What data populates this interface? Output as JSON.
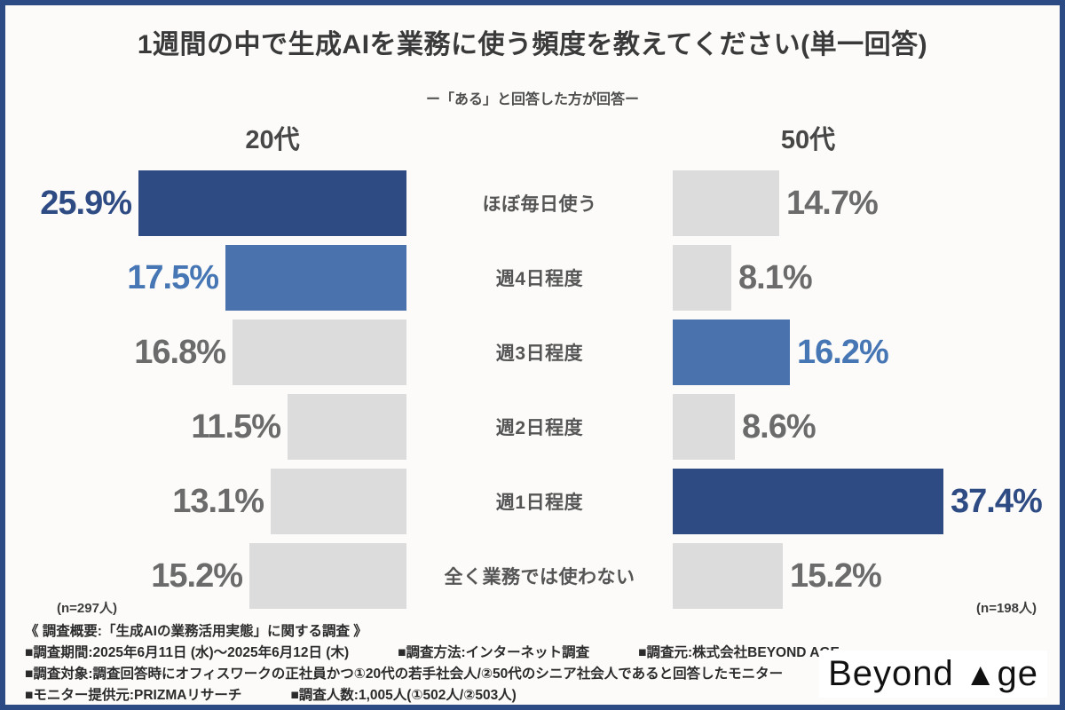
{
  "page": {
    "title": "1週間の中で生成AIを業務に使う頻度を教えてください(単一回答)",
    "subtitle": "ー「ある」と回答した方が回答ー",
    "colors": {
      "border": "#2C4A84",
      "background": "#FCFBF9",
      "title_text": "#3A3A3A"
    }
  },
  "chart_data": {
    "type": "bar",
    "orientation": "horizontal",
    "title": "1週間の中で生成AIを業務に使う頻度を教えてください(単一回答)",
    "subtitle": "ー「ある」と回答した方が回答ー",
    "categories": [
      "ほぼ毎日使う",
      "週4日程度",
      "週3日程度",
      "週2日程度",
      "週1日程度",
      "全く業務では使わない"
    ],
    "value_suffix": "%",
    "series": [
      {
        "name": "20代",
        "n_label": "(n=297人)",
        "values": [
          25.9,
          17.5,
          16.8,
          11.5,
          13.1,
          15.2
        ],
        "styles": [
          "dark",
          "mid",
          "gray",
          "gray",
          "gray",
          "gray"
        ],
        "bar_direction": "left",
        "label_position": "outside-left"
      },
      {
        "name": "50代",
        "n_label": "(n=198人)",
        "values": [
          14.7,
          8.1,
          16.2,
          8.6,
          37.4,
          15.2
        ],
        "styles": [
          "gray",
          "gray",
          "mid",
          "gray",
          "dark",
          "gray"
        ],
        "bar_direction": "right",
        "label_position": "outside-right"
      }
    ],
    "palette": {
      "dark": "#2E4B84",
      "mid": "#4A73AD",
      "gray": "#DCDCDC",
      "value_text_dark": "#2E4B84",
      "value_text_mid": "#4776B5",
      "value_text_gray": "#6B6B6B"
    },
    "legend_position": "none",
    "grid": false,
    "axis": "none"
  },
  "footer": {
    "lines": [
      [
        "《 調査概要:「生成AIの業務活用実態」に関する調査 》"
      ],
      [
        "■調査期間:2025年6月11日 (水)〜2025年6月12日 (木)",
        "■調査方法:インターネット調査",
        "■調査元:株式会社BEYOND AGE"
      ],
      [
        "■調査対象:調査回答時にオフィスワークの正社員かつ①20代の若手社会人/②50代のシニア社会人であると回答したモニター"
      ],
      [
        "■モニター提供元:PRIZMAリサーチ",
        "■調査人数:1,005人(①502人/②503人)"
      ]
    ]
  },
  "logo": {
    "prefix": "Beyond ",
    "triangle": "▲",
    "suffix": "ge"
  }
}
